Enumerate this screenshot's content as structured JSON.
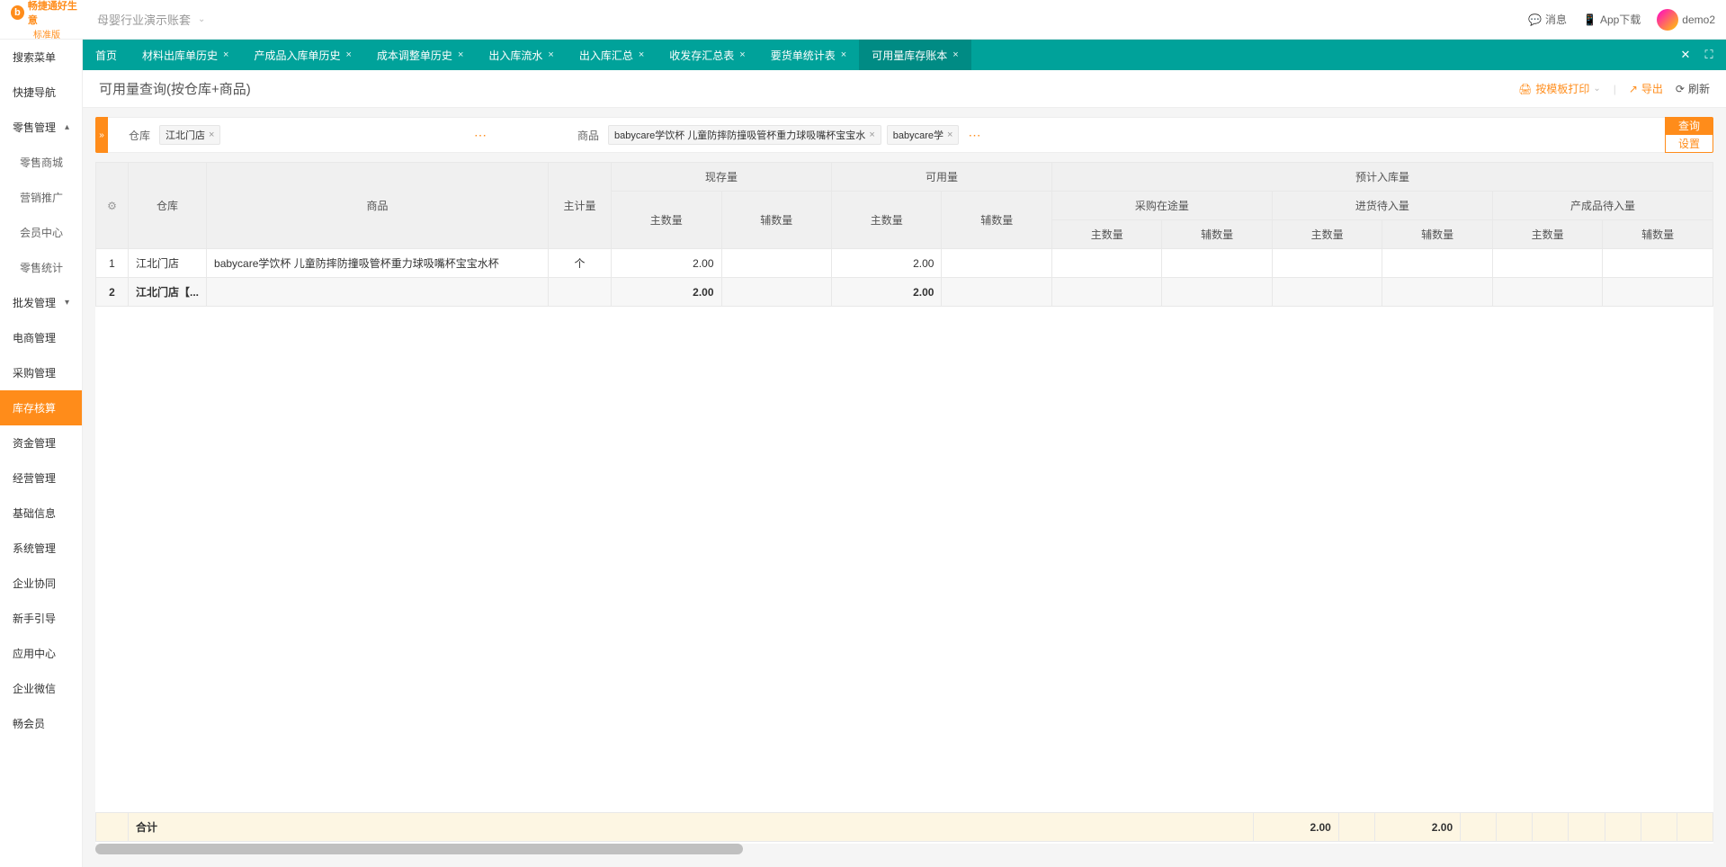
{
  "topbar": {
    "logo_text": "畅捷通好生意",
    "logo_sub": "标准版",
    "tenant": "母婴行业演示账套",
    "messages": "消息",
    "app_download": "App下载",
    "user": "demo2"
  },
  "sidebar": {
    "items": [
      {
        "label": "搜索菜单",
        "sub": false
      },
      {
        "label": "快捷导航",
        "sub": false
      },
      {
        "label": "零售管理",
        "sub": false,
        "expand": "▴"
      },
      {
        "label": "零售商城",
        "sub": true
      },
      {
        "label": "营销推广",
        "sub": true
      },
      {
        "label": "会员中心",
        "sub": true
      },
      {
        "label": "零售统计",
        "sub": true
      },
      {
        "label": "批发管理",
        "sub": false,
        "expand": "▾"
      },
      {
        "label": "电商管理",
        "sub": false
      },
      {
        "label": "采购管理",
        "sub": false
      },
      {
        "label": "库存核算",
        "sub": false,
        "active": true
      },
      {
        "label": "资金管理",
        "sub": false
      },
      {
        "label": "经营管理",
        "sub": false
      },
      {
        "label": "基础信息",
        "sub": false
      },
      {
        "label": "系统管理",
        "sub": false
      },
      {
        "label": "企业协同",
        "sub": false
      },
      {
        "label": "新手引导",
        "sub": false
      },
      {
        "label": "应用中心",
        "sub": false
      },
      {
        "label": "企业微信",
        "sub": false
      },
      {
        "label": "畅会员",
        "sub": false
      }
    ]
  },
  "tabs": [
    {
      "label": "首页",
      "closable": false
    },
    {
      "label": "材料出库单历史",
      "closable": true
    },
    {
      "label": "产成品入库单历史",
      "closable": true
    },
    {
      "label": "成本调整单历史",
      "closable": true
    },
    {
      "label": "出入库流水",
      "closable": true
    },
    {
      "label": "出入库汇总",
      "closable": true
    },
    {
      "label": "收发存汇总表",
      "closable": true
    },
    {
      "label": "要货单统计表",
      "closable": true
    },
    {
      "label": "可用量库存账本",
      "closable": true,
      "active": true
    }
  ],
  "page": {
    "title": "可用量查询(按仓库+商品)",
    "print": "按模板打印",
    "export": "导出",
    "refresh": "刷新"
  },
  "filter": {
    "warehouse_label": "仓库",
    "warehouse_tags": [
      "江北门店"
    ],
    "product_label": "商品",
    "product_tags": [
      "babycare学饮杯 儿童防摔防撞吸管杯重力球吸嘴杯宝宝水杯",
      "babycare学"
    ],
    "query_btn": "查询",
    "settings_btn": "设置"
  },
  "table": {
    "headers": {
      "gear": "⚙",
      "warehouse": "仓库",
      "product": "商品",
      "main_unit": "主计量",
      "stock_group": "现存量",
      "available_group": "可用量",
      "expected_in_group": "预计入库量",
      "purchase_transit": "采购在途量",
      "goods_pending": "进货待入量",
      "product_pending": "产成品待入量",
      "main_qty": "主数量",
      "aux_qty": "辅数量"
    },
    "rows": [
      {
        "idx": "1",
        "warehouse": "江北门店",
        "product": "babycare学饮杯 儿童防摔防撞吸管杯重力球吸嘴杯宝宝水杯",
        "unit": "个",
        "stock_main": "2.00",
        "stock_aux": "",
        "avail_main": "2.00",
        "avail_aux": ""
      },
      {
        "idx": "2",
        "warehouse": "江北门店【...",
        "product": "",
        "unit": "",
        "stock_main": "2.00",
        "stock_aux": "",
        "avail_main": "2.00",
        "avail_aux": "",
        "summary": true
      }
    ],
    "footer": {
      "label": "合计",
      "stock_main": "2.00",
      "avail_main": "2.00"
    }
  }
}
